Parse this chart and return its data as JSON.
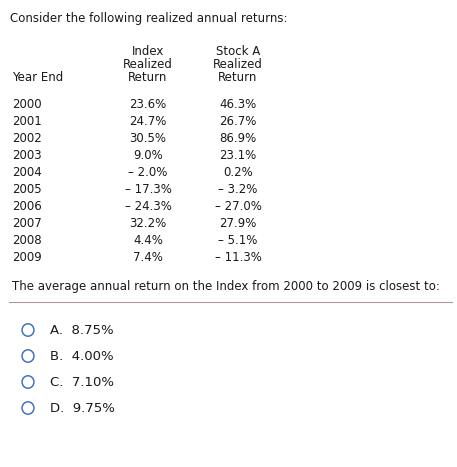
{
  "intro_text": "Consider the following realized annual returns:",
  "header_col0": "Year End",
  "header_col1_line1": "Index",
  "header_col1_line2": "Realized",
  "header_col1_line3": "Return",
  "header_col2_line1": "Stock A",
  "header_col2_line2": "Realized",
  "header_col2_line3": "Return",
  "years": [
    "2000",
    "2001",
    "2002",
    "2003",
    "2004",
    "2005",
    "2006",
    "2007",
    "2008",
    "2009"
  ],
  "index_returns": [
    "23.6%",
    "24.7%",
    "30.5%",
    "9.0%",
    "– 2.0%",
    "– 17.3%",
    "– 24.3%",
    "32.2%",
    "4.4%",
    "7.4%"
  ],
  "stock_returns": [
    "46.3%",
    "26.7%",
    "86.9%",
    "23.1%",
    "0.2%",
    "– 3.2%",
    "– 27.0%",
    "27.9%",
    "– 5.1%",
    "– 11.3%"
  ],
  "question_text": "The average annual return on the Index from 2000 to 2009 is closest to:",
  "options": [
    "A.  8.75%",
    "B.  4.00%",
    "C.  7.10%",
    "D.  9.75%"
  ],
  "bg_color": "#ffffff",
  "text_color": "#1a1a1a",
  "option_circle_color": "#4472c4",
  "separator_color": "#b09898",
  "fig_width": 4.57,
  "fig_height": 4.67,
  "dpi": 100
}
